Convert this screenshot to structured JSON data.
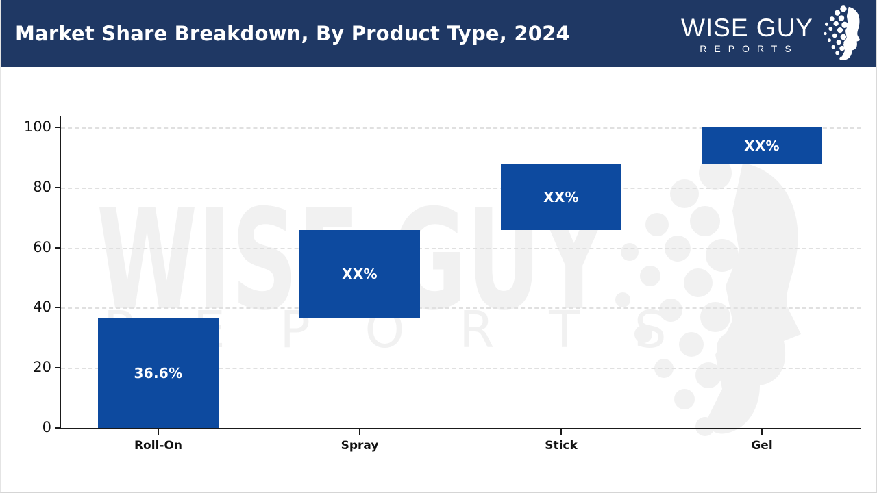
{
  "header": {
    "title": "Market Share Breakdown, By Product Type, 2024",
    "logo": {
      "line1": "WISE GUY",
      "line2": "REPORTS"
    }
  },
  "watermark": {
    "line1": "WISE GUY",
    "line2": "R E P O R T S"
  },
  "chart_data": {
    "type": "bar",
    "subtype": "waterfall-floating-bars",
    "title": "Market Share Breakdown, By Product Type, 2024",
    "categories": [
      "Roll-On",
      "Spray",
      "Stick",
      "Gel"
    ],
    "series": [
      {
        "name": "Market Share",
        "segments": [
          {
            "category": "Roll-On",
            "start": 0,
            "end": 36.6,
            "label": "36.6%"
          },
          {
            "category": "Spray",
            "start": 36.6,
            "end": 65.8,
            "label": "XX%"
          },
          {
            "category": "Stick",
            "start": 65.8,
            "end": 87.9,
            "label": "XX%"
          },
          {
            "category": "Gel",
            "start": 87.9,
            "end": 100,
            "label": "XX%"
          }
        ]
      }
    ],
    "xlabel": "",
    "ylabel": "",
    "ylim": [
      0,
      100
    ],
    "yticks": [
      0,
      20,
      40,
      60,
      80,
      100
    ],
    "grid": "horizontal-dashed",
    "legend": "none"
  },
  "colors": {
    "header_bg": "#1F3864",
    "bar": "#0D4A9F",
    "grid": "#E0E0E0",
    "axis": "#1A1A1A",
    "watermark": "#F1F1F1",
    "title_text": "#FFFFFF",
    "tick_text": "#111111",
    "bar_label_text": "#FFFFFF"
  }
}
